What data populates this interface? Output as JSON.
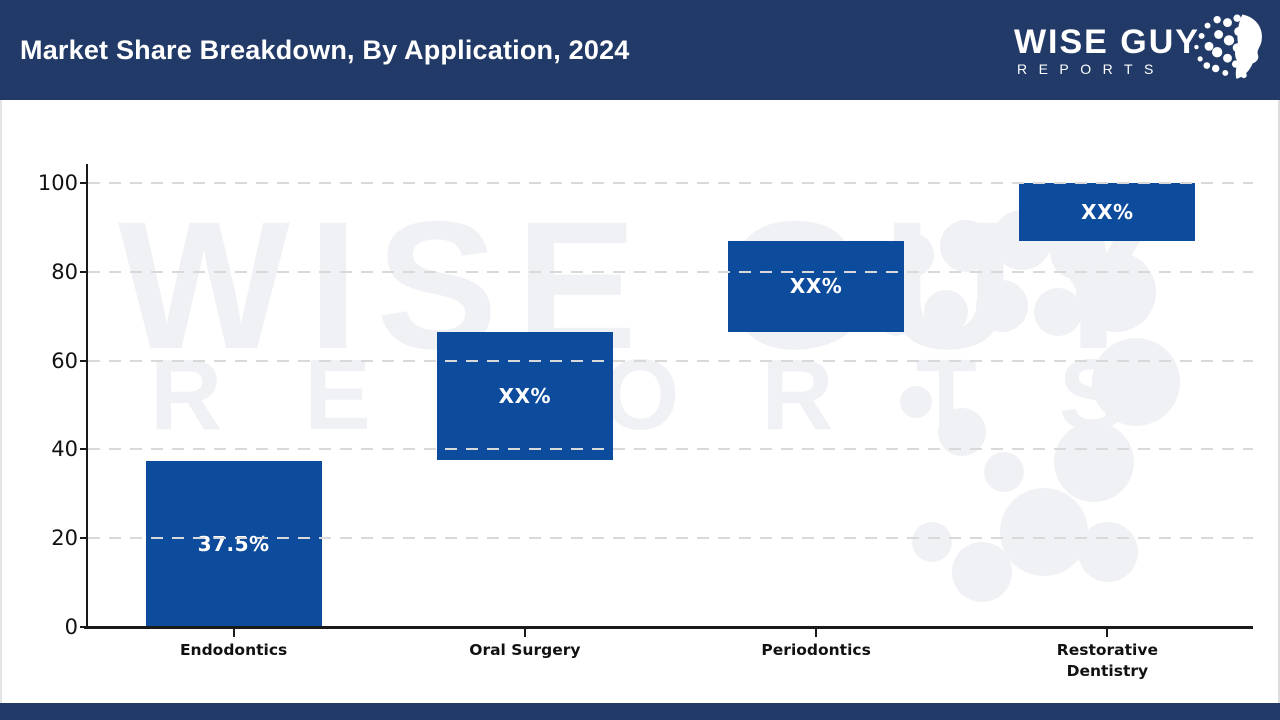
{
  "header": {
    "title": "Market Share Breakdown, By Application, 2024"
  },
  "brand": {
    "line1": "WISE GUY",
    "line2": "REPORTS"
  },
  "watermark": {
    "line1": "WISE GUY",
    "line2": "REPORTS"
  },
  "colors": {
    "navy": "#223a68",
    "bar_blue": "#0d4b9d",
    "grid": "#d9d9d9",
    "watermark": "#f0f1f4",
    "axis": "#1a1a1a"
  },
  "chart_data": {
    "type": "bar",
    "subtype": "floating-waterfall",
    "title": "Market Share Breakdown, By Application, 2024",
    "xlabel": "",
    "ylabel": "",
    "categories": [
      "Endodontics",
      "Oral Surgery",
      "Periodontics",
      "Restorative Dentistry"
    ],
    "segments": [
      {
        "category": "Endodontics",
        "start": 0,
        "end": 37.5,
        "label": "37.5%"
      },
      {
        "category": "Oral Surgery",
        "start": 37.5,
        "end": 66.5,
        "label": "XX%"
      },
      {
        "category": "Periodontics",
        "start": 66.5,
        "end": 87,
        "label": "XX%"
      },
      {
        "category": "Restorative Dentistry",
        "start": 87,
        "end": 100,
        "label": "XX%"
      }
    ],
    "yticks": [
      0,
      20,
      40,
      60,
      80,
      100
    ],
    "ylim": [
      0,
      104
    ],
    "grid": "dashed-horizontal",
    "legend": "none"
  }
}
